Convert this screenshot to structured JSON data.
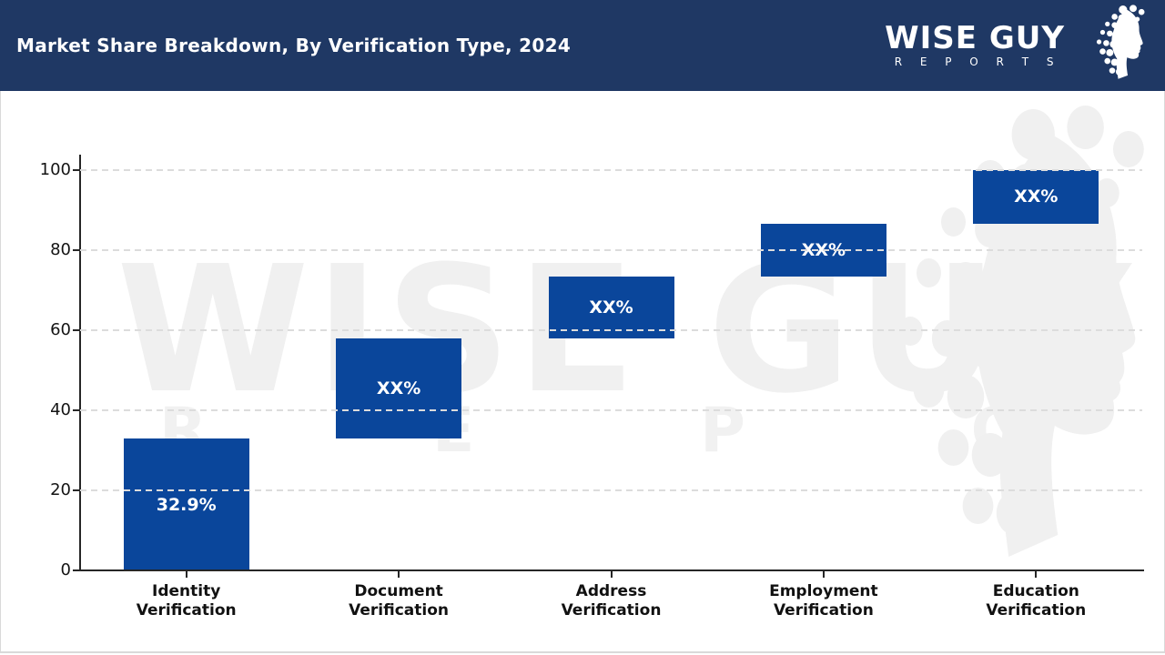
{
  "header": {
    "title": "Market Share Breakdown, By Verification Type, 2024",
    "brand": {
      "name": "WISE GUY",
      "subtitle": "R E P O R T S",
      "icon": "head-profile-dots-icon"
    }
  },
  "watermark": {
    "line1": "WISE GUY",
    "line2": "R E P O R T S"
  },
  "colors": {
    "header_bg": "#1f3864",
    "bar": "#0a469b",
    "bar_label": "#ffffff",
    "grid": "#dcdcdc",
    "axis": "#262626",
    "watermark": "#f0f0f0"
  },
  "chart_data": {
    "type": "bar",
    "variant": "waterfall",
    "title": "Market Share Breakdown, By Verification Type, 2024",
    "categories": [
      "Identity Verification",
      "Document Verification",
      "Address Verification",
      "Employment Verification",
      "Education Verification"
    ],
    "segments": [
      {
        "category": "Identity Verification",
        "start": 0,
        "end": 32.9,
        "label": "32.9%"
      },
      {
        "category": "Document Verification",
        "start": 32.9,
        "end": 58.0,
        "label": "XX%"
      },
      {
        "category": "Address Verification",
        "start": 58.0,
        "end": 73.3,
        "label": "XX%"
      },
      {
        "category": "Employment Verification",
        "start": 73.3,
        "end": 86.7,
        "label": "XX%"
      },
      {
        "category": "Education Verification",
        "start": 86.7,
        "end": 100,
        "label": "XX%"
      }
    ],
    "ylim": [
      0,
      100
    ],
    "yticks": [
      0,
      20,
      40,
      60,
      80,
      100
    ],
    "xlabel": "",
    "ylabel": "",
    "grid": "dashed-horizontal",
    "legend": "none"
  }
}
